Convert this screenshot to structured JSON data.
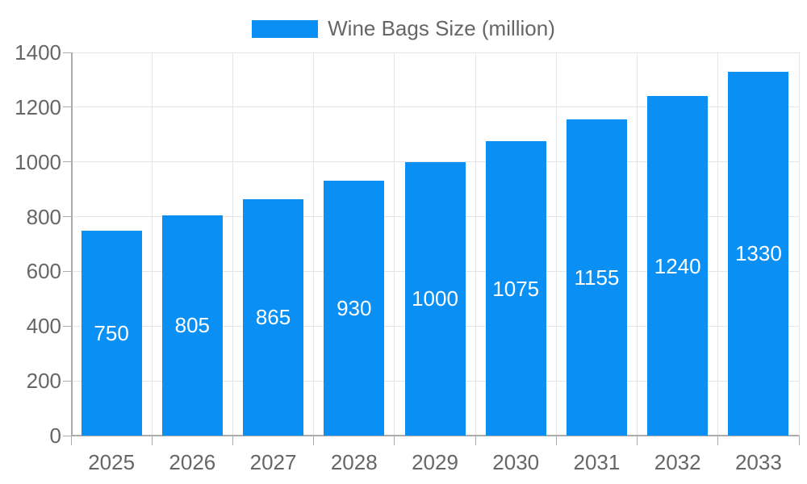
{
  "legend": {
    "label": "Wine Bags Size (million)"
  },
  "chart_data": {
    "type": "bar",
    "title": "Wine Bags Size (million)",
    "series_name": "Wine Bags Size (million)",
    "categories": [
      "2025",
      "2026",
      "2027",
      "2028",
      "2029",
      "2030",
      "2031",
      "2032",
      "2033"
    ],
    "values": [
      750,
      805,
      865,
      930,
      1000,
      1075,
      1155,
      1240,
      1330
    ],
    "xlabel": "",
    "ylabel": "",
    "ylim": [
      0,
      1400
    ],
    "ytick_step": 200,
    "yticks": [
      0,
      200,
      400,
      600,
      800,
      1000,
      1200,
      1400
    ],
    "grid": true,
    "legend_position": "top",
    "bar_value_labels_inside": true,
    "colors": {
      "bar": "#0a90f5",
      "bar_label": "#ffffff",
      "axis_text": "#666666",
      "grid": "#e5e5e5",
      "axis_line": "#ababab",
      "background": "#ffffff"
    }
  }
}
